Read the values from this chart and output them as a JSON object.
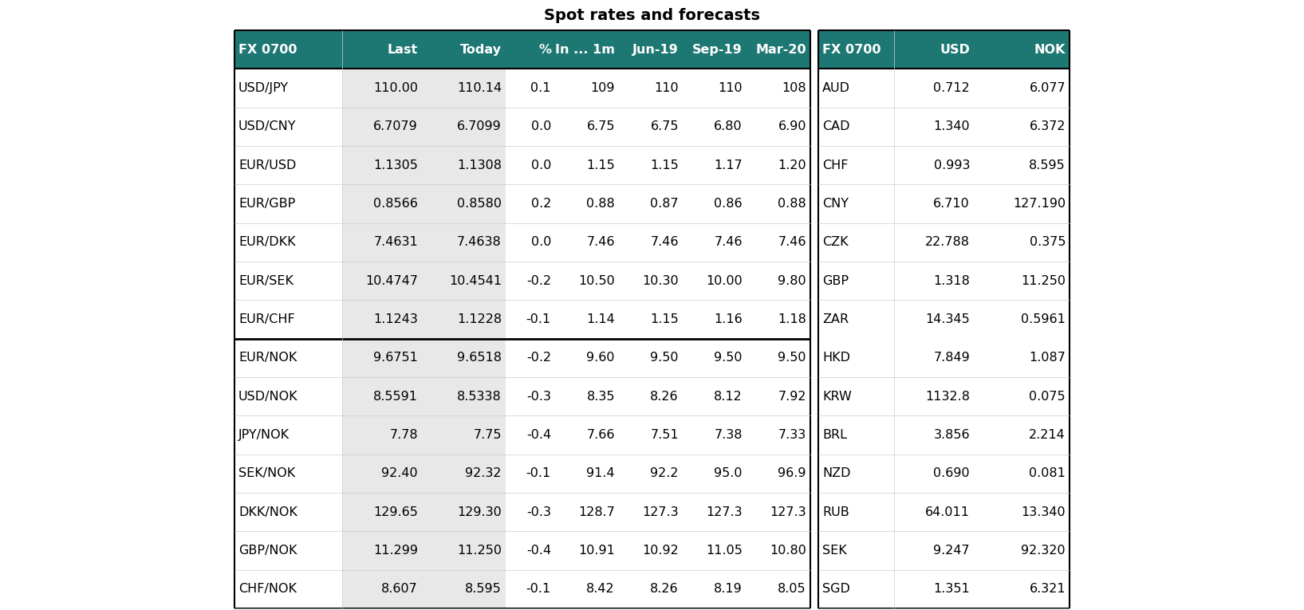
{
  "title": "Spot rates and forecasts",
  "header_bg": "#1d7874",
  "header_text": "#ffffff",
  "row_bg_alt": "#e8e8e8",
  "row_bg_normal": "#ffffff",
  "text_color": "#000000",
  "left_headers": [
    "FX 0700",
    "Last",
    "Today",
    "%",
    "In ... 1m",
    "Jun-19",
    "Sep-19",
    "Mar-20"
  ],
  "right_headers": [
    "FX 0700",
    "USD",
    "NOK"
  ],
  "left_data": [
    [
      "USD/JPY",
      "110.00",
      "110.14",
      "0.1",
      "109",
      "110",
      "110",
      "108"
    ],
    [
      "USD/CNY",
      "6.7079",
      "6.7099",
      "0.0",
      "6.75",
      "6.75",
      "6.80",
      "6.90"
    ],
    [
      "EUR/USD",
      "1.1305",
      "1.1308",
      "0.0",
      "1.15",
      "1.15",
      "1.17",
      "1.20"
    ],
    [
      "EUR/GBP",
      "0.8566",
      "0.8580",
      "0.2",
      "0.88",
      "0.87",
      "0.86",
      "0.88"
    ],
    [
      "EUR/DKK",
      "7.4631",
      "7.4638",
      "0.0",
      "7.46",
      "7.46",
      "7.46",
      "7.46"
    ],
    [
      "EUR/SEK",
      "10.4747",
      "10.4541",
      "-0.2",
      "10.50",
      "10.30",
      "10.00",
      "9.80"
    ],
    [
      "EUR/CHF",
      "1.1243",
      "1.1228",
      "-0.1",
      "1.14",
      "1.15",
      "1.16",
      "1.18"
    ],
    [
      "EUR/NOK",
      "9.6751",
      "9.6518",
      "-0.2",
      "9.60",
      "9.50",
      "9.50",
      "9.50"
    ],
    [
      "USD/NOK",
      "8.5591",
      "8.5338",
      "-0.3",
      "8.35",
      "8.26",
      "8.12",
      "7.92"
    ],
    [
      "JPY/NOK",
      "7.78",
      "7.75",
      "-0.4",
      "7.66",
      "7.51",
      "7.38",
      "7.33"
    ],
    [
      "SEK/NOK",
      "92.40",
      "92.32",
      "-0.1",
      "91.4",
      "92.2",
      "95.0",
      "96.9"
    ],
    [
      "DKK/NOK",
      "129.65",
      "129.30",
      "-0.3",
      "128.7",
      "127.3",
      "127.3",
      "127.3"
    ],
    [
      "GBP/NOK",
      "11.299",
      "11.250",
      "-0.4",
      "10.91",
      "10.92",
      "11.05",
      "10.80"
    ],
    [
      "CHF/NOK",
      "8.607",
      "8.595",
      "-0.1",
      "8.42",
      "8.26",
      "8.19",
      "8.05"
    ]
  ],
  "right_data": [
    [
      "AUD",
      "0.712",
      "6.077"
    ],
    [
      "CAD",
      "1.340",
      "6.372"
    ],
    [
      "CHF",
      "0.993",
      "8.595"
    ],
    [
      "CNY",
      "6.710",
      "127.190"
    ],
    [
      "CZK",
      "22.788",
      "0.375"
    ],
    [
      "GBP",
      "1.318",
      "11.250"
    ],
    [
      "ZAR",
      "14.345",
      "0.5961"
    ],
    [
      "HKD",
      "7.849",
      "1.087"
    ],
    [
      "KRW",
      "1132.8",
      "0.075"
    ],
    [
      "BRL",
      "3.856",
      "2.214"
    ],
    [
      "NZD",
      "0.690",
      "0.081"
    ],
    [
      "RUB",
      "64.011",
      "13.340"
    ],
    [
      "SEK",
      "9.247",
      "92.320"
    ],
    [
      "SGD",
      "1.351",
      "6.321"
    ]
  ],
  "divider_after_row": 6,
  "title_fontsize": 14,
  "data_fontsize": 11.5,
  "header_fontsize": 11.5
}
